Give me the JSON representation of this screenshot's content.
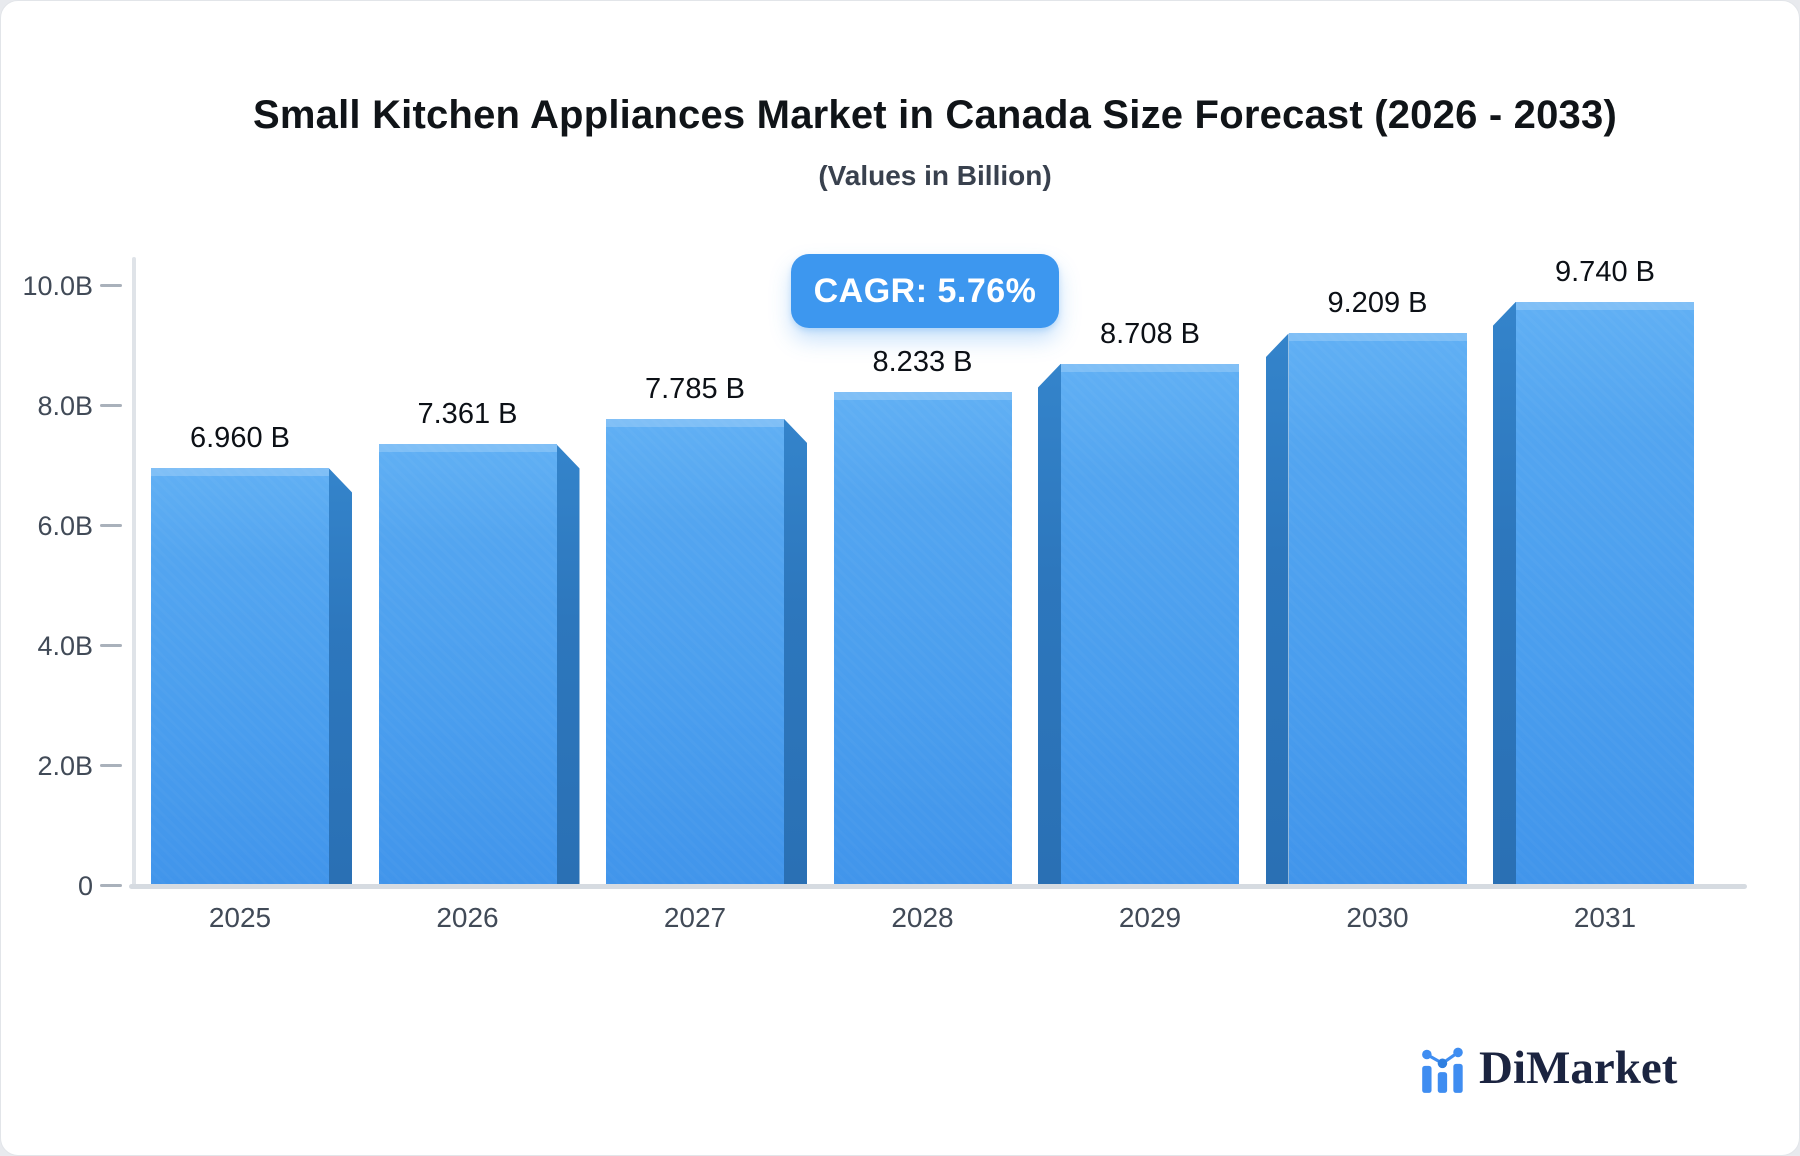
{
  "header": {
    "title": "Small Kitchen Appliances Market in Canada Size Forecast (2026 - 2033)",
    "subtitle": "(Values in Billion)"
  },
  "badge": {
    "label": "CAGR: 5.76%"
  },
  "logo": {
    "name": "DiMarket"
  },
  "chart_data": {
    "type": "bar",
    "title": "Small Kitchen Appliances Market in Canada Size Forecast (2026 - 2033)",
    "subtitle": "(Values in Billion)",
    "annotation": "CAGR: 5.76%",
    "cagr_percent": 5.76,
    "unit": "Billion",
    "categories": [
      "2025",
      "2026",
      "2027",
      "2028",
      "2029",
      "2030",
      "2031"
    ],
    "values": [
      6.96,
      7.361,
      7.785,
      8.233,
      8.708,
      9.209,
      9.74
    ],
    "value_labels": [
      "6.960 B",
      "7.361 B",
      "7.785 B",
      "8.233 B",
      "8.708 B",
      "9.209 B",
      "9.740 B"
    ],
    "ylim": [
      0,
      10
    ],
    "yticks": {
      "values": [
        0,
        2,
        4,
        6,
        8,
        10
      ],
      "labels": [
        "0",
        "2.0B",
        "4.0B",
        "6.0B",
        "8.0B",
        "10.0B"
      ]
    },
    "grid": false,
    "legend": false,
    "style": "3d-bars, side face toward chart center, no gridlines",
    "colors": {
      "bar_face": "#53a5f0",
      "bar_face_highlight": "#61b0f4",
      "bar_side": "#2d77bd",
      "badge_bg": "#3d97ef",
      "badge_text": "#ffffff",
      "axis_line": "#dfe3e8",
      "baseline": "#d6dbe1",
      "tick": "#a9b1bb",
      "tick_label": "#414a57",
      "value_label": "#0c1016",
      "title": "#101418",
      "logo_blue": "#3f8df1",
      "logo_navy": "#1b2440"
    }
  }
}
